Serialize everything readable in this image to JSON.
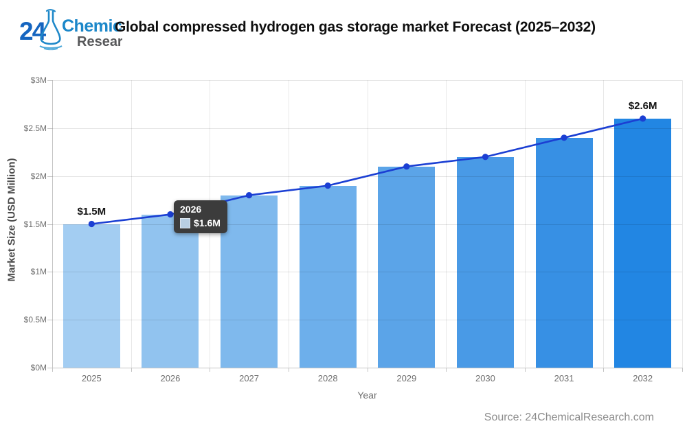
{
  "header": {
    "logo": {
      "number": "24",
      "line1": "Chemical",
      "line2": "Research"
    },
    "title": "Global compressed hydrogen gas storage market Forecast (2025–2032)"
  },
  "chart_data": {
    "type": "bar",
    "overlay": "line",
    "title": "Global compressed hydrogen gas storage market Forecast (2025–2032)",
    "categories": [
      "2025",
      "2026",
      "2027",
      "2028",
      "2029",
      "2030",
      "2031",
      "2032"
    ],
    "values": [
      1.5,
      1.6,
      1.8,
      1.9,
      2.1,
      2.2,
      2.4,
      2.6
    ],
    "bar_colors": [
      "#a3cdf2",
      "#91c3ef",
      "#7fb9ed",
      "#6dafeb",
      "#5ba4e8",
      "#499ae6",
      "#3790e4",
      "#2286e3"
    ],
    "line_color": "#1b3fd3",
    "xlabel": "Year",
    "ylabel": "Market Size (USD Million)",
    "ylim": [
      0,
      3
    ],
    "ytick_step": 0.5,
    "ytick_labels": [
      "$0M",
      "$0.5M",
      "$1M",
      "$1.5M",
      "$2M",
      "$2.5M",
      "$3M"
    ],
    "grid": true,
    "legend_position": "none",
    "point_labels": [
      {
        "index": 0,
        "label": "$1.5M"
      },
      {
        "index": 7,
        "label": "$2.6M"
      }
    ]
  },
  "tooltip": {
    "year": "2026",
    "value": "$1.6M",
    "swatch_color": "#b9cfe3"
  },
  "source": "Source: 24ChemicalResearch.com"
}
